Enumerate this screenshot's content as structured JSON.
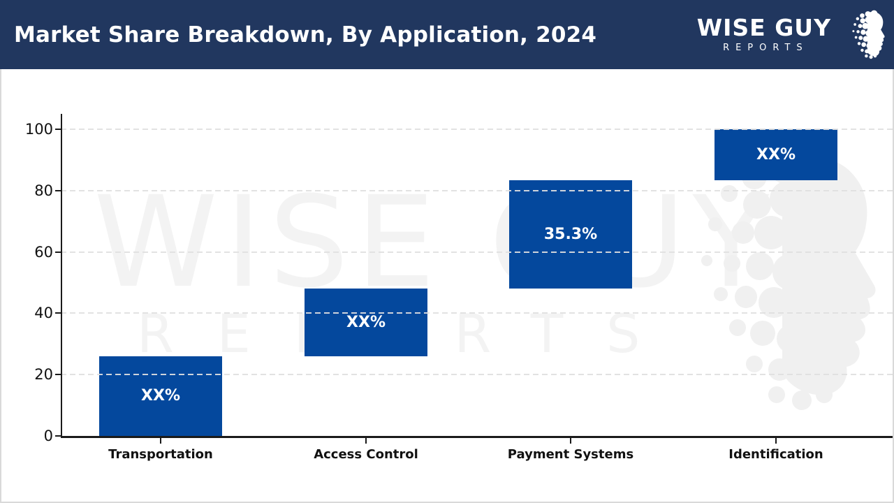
{
  "header": {
    "title": "Market Share Breakdown, By Application, 2024",
    "brand": {
      "name": "WISE GUY",
      "sub": "REPORTS"
    }
  },
  "watermark": {
    "line1": "WISE GUY",
    "line2": "REPORTS"
  },
  "chart_data": {
    "type": "bar",
    "variant": "floating-waterfall",
    "title": "Market Share Breakdown, By Application, 2024",
    "categories": [
      "Transportation",
      "Access Control",
      "Payment Systems",
      "Identification"
    ],
    "segments": [
      {
        "category": "Transportation",
        "start": 0,
        "end": 26,
        "label": "XX%"
      },
      {
        "category": "Access Control",
        "start": 26,
        "end": 48,
        "label": "XX%"
      },
      {
        "category": "Payment Systems",
        "start": 48,
        "end": 83.3,
        "label": "35.3%"
      },
      {
        "category": "Identification",
        "start": 83.3,
        "end": 100,
        "label": "XX%"
      }
    ],
    "yticks": [
      0,
      20,
      40,
      60,
      80,
      100
    ],
    "ylim": [
      0,
      105
    ],
    "xlabel": "",
    "ylabel": "",
    "grid": {
      "axis": "y",
      "style": "dashed"
    },
    "legend": null,
    "bar_color": "#04489D"
  },
  "colors": {
    "header_bg": "#21375F",
    "bar": "#04489D",
    "axis": "#1a1a1a",
    "grid": "#e0e0e0",
    "watermark": "#f3f3f3",
    "border": "#d9d9d9",
    "bar_label": "#ffffff"
  }
}
